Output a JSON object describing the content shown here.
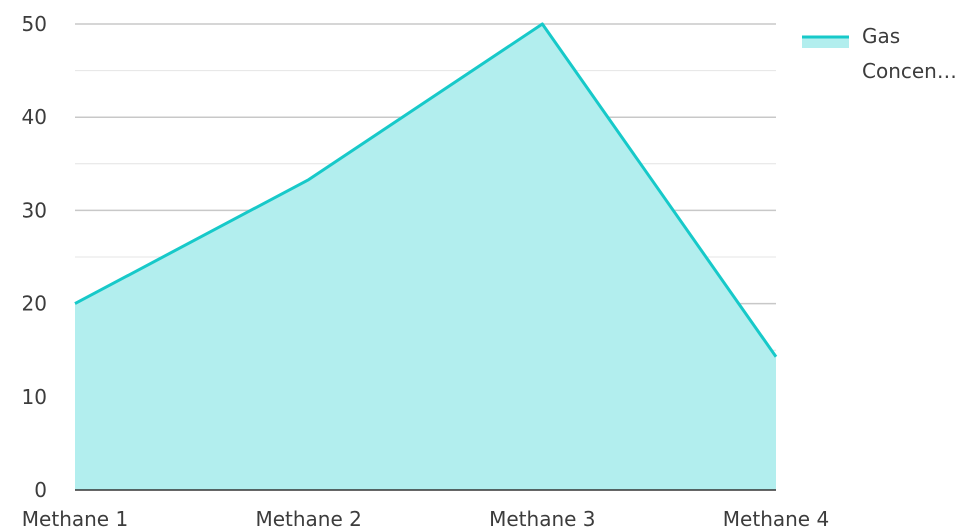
{
  "chart_data": {
    "type": "area",
    "categories": [
      "Methane 1",
      "Methane 2",
      "Methane 3",
      "Methane 4"
    ],
    "series": [
      {
        "name": "Gas Concen…",
        "values": [
          20,
          33.3,
          50,
          14.3
        ]
      }
    ],
    "ylim": [
      0,
      50
    ],
    "yticks": [
      0,
      10,
      20,
      30,
      40,
      50
    ],
    "grid": true,
    "legend": {
      "position": "top-right",
      "label_lines": [
        "Gas",
        "Concen…"
      ]
    },
    "colors": {
      "line": "#17c9c9",
      "fill": "#b2eeee",
      "grid": "#c8c8c8",
      "minor_grid": "#e4e4e4",
      "axis": "#333333"
    }
  }
}
